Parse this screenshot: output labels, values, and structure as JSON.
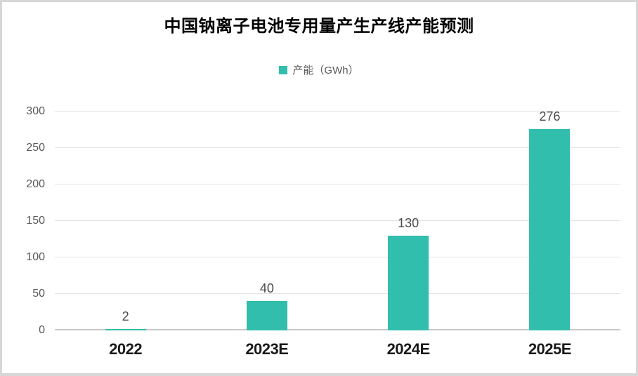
{
  "panel": {
    "background": "#FFFFFF",
    "border_color": "#D7D7D7"
  },
  "title": "中国钠离子电池专用量产生产线产能预测",
  "legend": {
    "label": "产能（GWh）",
    "swatch_icon": "teal-square-icon",
    "swatch_color": "#32BEAD"
  },
  "chart_data": {
    "type": "bar",
    "title": "中国钠离子电池专用量产生产线产能预测",
    "series_name": "产能（GWh）",
    "categories": [
      "2022",
      "2023E",
      "2024E",
      "2025E"
    ],
    "values": [
      2,
      40,
      130,
      276
    ],
    "data_labels": [
      "2",
      "40",
      "130",
      "276"
    ],
    "xlabel": "",
    "ylabel": "",
    "ylim": [
      0,
      300
    ],
    "yticks": [
      0,
      50,
      100,
      150,
      200,
      250,
      300
    ],
    "grid": true,
    "legend_position": "top-center",
    "bar_color": "#32BEAD",
    "gridline_color": "#E3E3E3",
    "axis_line_color": "#C9C9C9",
    "tick_label_color": "#595959",
    "value_label_color": "#4A4A4A",
    "category_label_color": "#1A1A1A"
  }
}
